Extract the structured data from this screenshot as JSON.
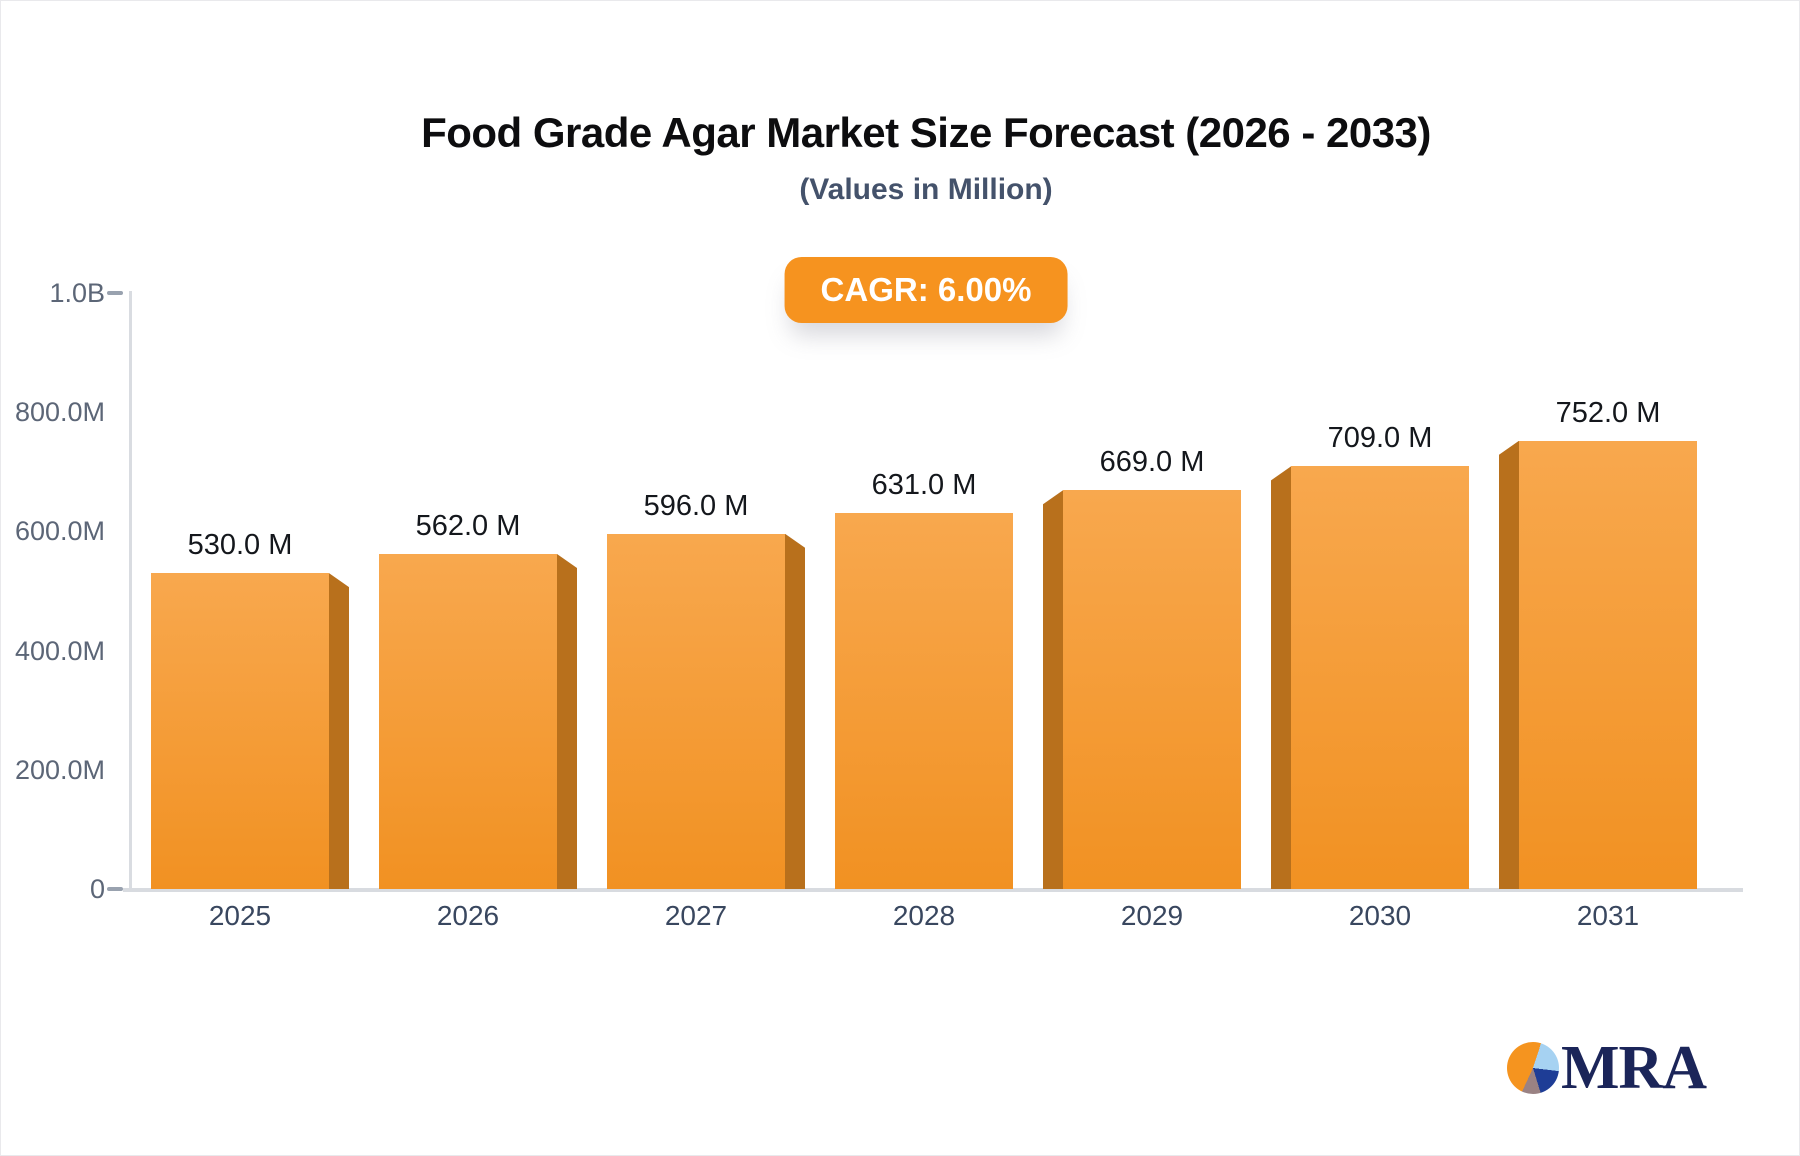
{
  "header": {
    "title": "Food Grade Agar Market Size Forecast (2026 - 2033)",
    "subtitle": "(Values in Million)"
  },
  "badge": {
    "label": "CAGR: 6.00%",
    "bg": "#f6931f",
    "text_color": "#ffffff"
  },
  "chart_data": {
    "type": "bar",
    "title": "Food Grade Agar Market Size Forecast (2026 - 2033)",
    "subtitle": "(Values in Million)",
    "categories": [
      "2025",
      "2026",
      "2027",
      "2028",
      "2029",
      "2030",
      "2031"
    ],
    "values": [
      530,
      562,
      596,
      631,
      669,
      709,
      752
    ],
    "value_labels": [
      "530.0 M",
      "562.0 M",
      "596.0 M",
      "631.0 M",
      "669.0 M",
      "709.0 M",
      "752.0 M"
    ],
    "ylim": [
      0,
      1000
    ],
    "y_ticks": [
      {
        "label": "0",
        "value": 0,
        "dash": true
      },
      {
        "label": "200.0M",
        "value": 200,
        "dash": false
      },
      {
        "label": "400.0M",
        "value": 400,
        "dash": false
      },
      {
        "label": "600.0M",
        "value": 600,
        "dash": false
      },
      {
        "label": "800.0M",
        "value": 800,
        "dash": false
      },
      {
        "label": "1.0B",
        "value": 1000,
        "dash": true
      }
    ],
    "grid": false,
    "legend": null,
    "colors": {
      "bar_gradient_top": "#f8a84e",
      "bar_gradient_bottom": "#f19122",
      "bar_side": "#b8701c",
      "axis": "#d9dce1",
      "y_tick_label": "#5c6677",
      "category_label": "#39475f",
      "value_label": "#14171c"
    }
  },
  "logo": {
    "text": "MRA",
    "pie_colors": {
      "orange": "#f5941f",
      "light_blue": "#a6d2f2",
      "dark_blue": "#1e3d96",
      "mauve": "#9a8283",
      "text_navy": "#1b2559"
    }
  }
}
